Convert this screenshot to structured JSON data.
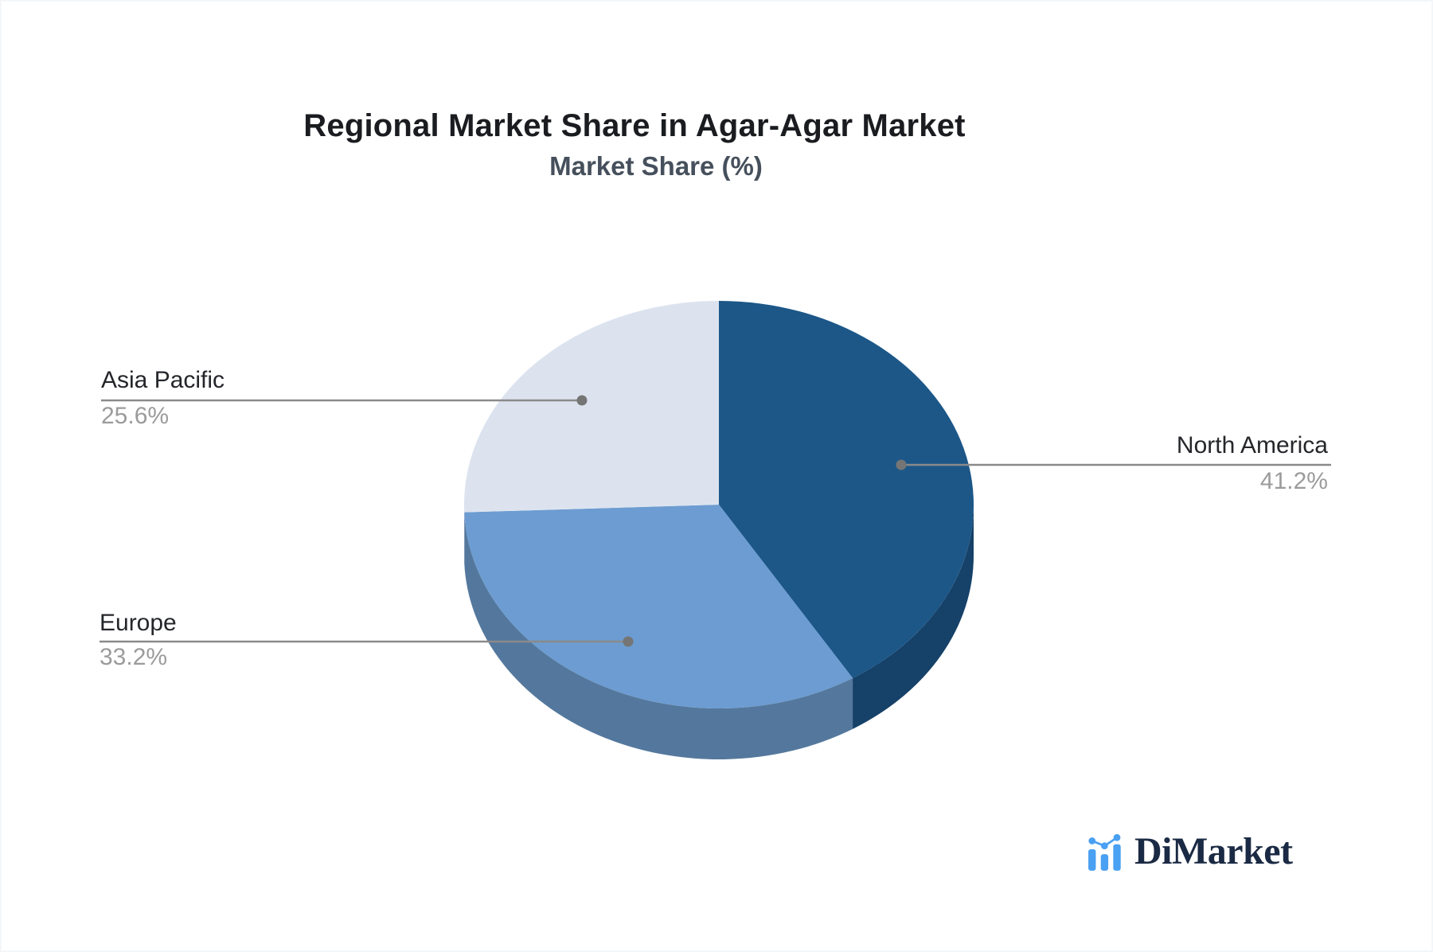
{
  "header": {
    "title": "Regional Market Share in Agar-Agar Market",
    "subtitle": "Market Share (%)"
  },
  "chart_data": {
    "type": "pie",
    "title": "Regional Market Share in Agar-Agar Market",
    "subtitle": "Market Share (%)",
    "unit": "%",
    "effect_3d": true,
    "direction": "clockwise",
    "start_angle_deg": 0,
    "legend": false,
    "slices": [
      {
        "label": "North America",
        "value": 41.2,
        "pct_label": "41.2%",
        "color": "#1C5788",
        "side_color": "#164168"
      },
      {
        "label": "Europe",
        "value": 33.2,
        "pct_label": "33.2%",
        "color": "#6C9CD1",
        "side_color": "#54789D"
      },
      {
        "label": "Asia Pacific",
        "value": 25.6,
        "pct_label": "25.6%",
        "color": "#DCE3EF",
        "side_color": "#B6C0D2"
      }
    ]
  },
  "branding": {
    "logo_text": "DiMarket",
    "logo_icon": "mini-bar-line-chart-icon",
    "logo_icon_color": "#4AA0F2",
    "logo_text_color": "#1B2A44"
  },
  "colors": {
    "background": "#FFFFFF",
    "leader_line": "#8a8a8a",
    "leader_dot": "#757575",
    "label_text": "#24262a",
    "pct_text": "#9b9b9b"
  }
}
